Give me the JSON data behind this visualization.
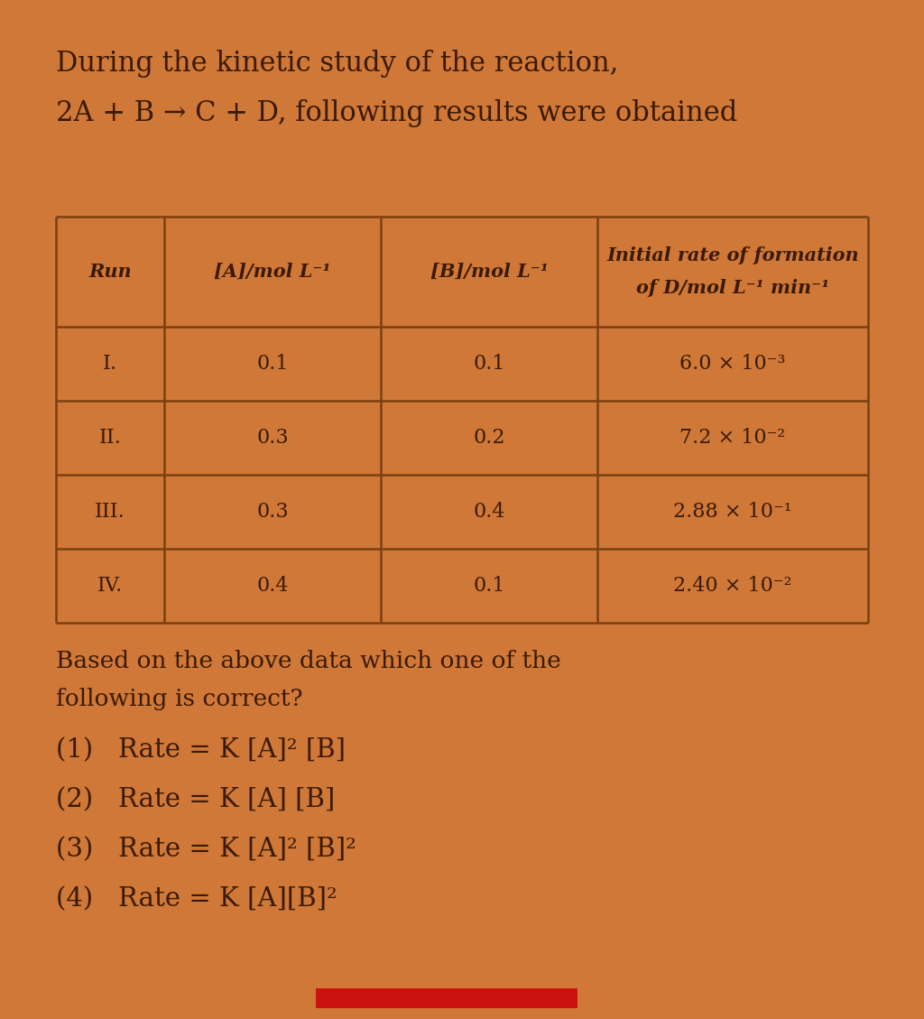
{
  "background_color": "#D07838",
  "title_line1": "During the kinetic study of the reaction,",
  "title_line2": "2A + B → C + D, following results were obtained",
  "table_header_col0": "Run",
  "table_header_col1": "[A]/mol L⁻¹",
  "table_header_col2": "[B]/mol L⁻¹",
  "table_header_col3_line1": "Initial rate of formation",
  "table_header_col3_line2": "of D/mol L⁻¹ min⁻¹",
  "table_data": [
    [
      "I.",
      "0.1",
      "0.1",
      "6.0 × 10⁻³"
    ],
    [
      "II.",
      "0.3",
      "0.2",
      "7.2 × 10⁻²"
    ],
    [
      "III.",
      "0.3",
      "0.4",
      "2.88 × 10⁻¹"
    ],
    [
      "IV.",
      "0.4",
      "0.1",
      "2.40 × 10⁻²"
    ]
  ],
  "question_line1": "Based on the above data which one of the",
  "question_line2": "following is correct?",
  "options": [
    "(1)   Rate = K [A]² [B]",
    "(2)   Rate = K [A] [B]",
    "(3)   Rate = K [A]² [B]²",
    "(4)   Rate = K [A][B]²"
  ],
  "text_color": "#3B1A05",
  "border_color": "#7A4010",
  "red_bar_color": "#CC1111",
  "font_size_title": 22,
  "font_size_table_header": 15,
  "font_size_table_data": 16,
  "font_size_question": 19,
  "font_size_options": 21
}
